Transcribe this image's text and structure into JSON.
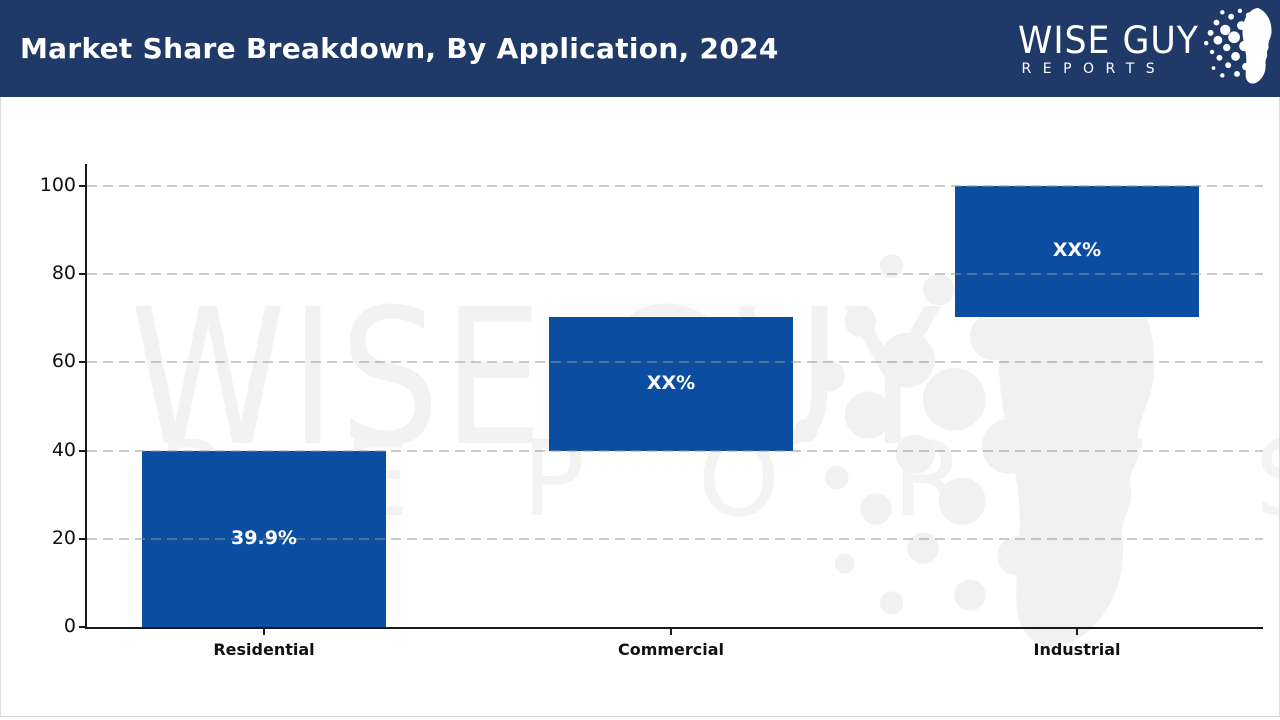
{
  "header": {
    "title": "Market Share Breakdown, By Application, 2024",
    "bg_color": "#1F3A68",
    "logo": {
      "line1": "WISE GUY",
      "line2": "REPORTS"
    }
  },
  "watermark": {
    "line1": "WISE GUY",
    "line2": "R E P O R T S"
  },
  "chart_data": {
    "type": "bar",
    "subtype": "waterfall",
    "title": "Market Share Breakdown, By Application, 2024",
    "xlabel": "",
    "ylabel": "",
    "categories": [
      "Residential",
      "Commercial",
      "Industrial"
    ],
    "series": [
      {
        "name": "Market Share",
        "segments": [
          {
            "category": "Residential",
            "start": 0,
            "end": 39.9,
            "label": "39.9%"
          },
          {
            "category": "Commercial",
            "start": 39.9,
            "end": 70.4,
            "label": "XX%"
          },
          {
            "category": "Industrial",
            "start": 70.4,
            "end": 100,
            "label": "XX%"
          }
        ]
      }
    ],
    "ylim": [
      0,
      105
    ],
    "yticks": [
      0,
      20,
      40,
      60,
      80,
      100
    ],
    "grid": "horizontal-dashed",
    "legend": "none",
    "bar_color": "#0B4DA1",
    "label_color": "#ffffff"
  }
}
